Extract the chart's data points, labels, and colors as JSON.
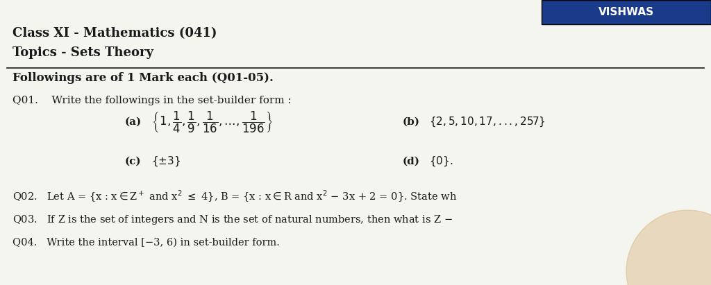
{
  "bg_color": "#f5f5f0",
  "text_color": "#1a1a1a",
  "header_line1": "Class XI - Mathematics (041)",
  "header_line2": "Topics - Sets Theory",
  "section_heading": "Followings are of 1 Mark each (Q01-05).",
  "q01_intro": "Q01.    Write the followings in the set-builder form :",
  "q01_a_label": "(a)",
  "q01_b_label": "(b)",
  "q01_b_text": "{2,5,10,17,...,257}",
  "q01_c_label": "(c)",
  "q01_c_text": "{\\u00b13}",
  "q01_d_label": "(d)",
  "q01_d_text": "{0}.",
  "q02_text": "Q02.   Let A = {x : x\\u2208Z\\u207a and x\\u00b2 \\u2264 4}, B = {x : x\\u2208R and x\\u00b2 \\u22123x + 2 = 0}. State wh",
  "q03_text": "Q03.   If Z is the set of integers and N is the set of natural numbers, then what is Z −",
  "q04_text": "Q04.   Write the interval [−3, 6) in set-builder form.",
  "banner_color": "#1a3a8a",
  "banner_text": "VISHWAS",
  "watermark_color": "#d4a96a"
}
